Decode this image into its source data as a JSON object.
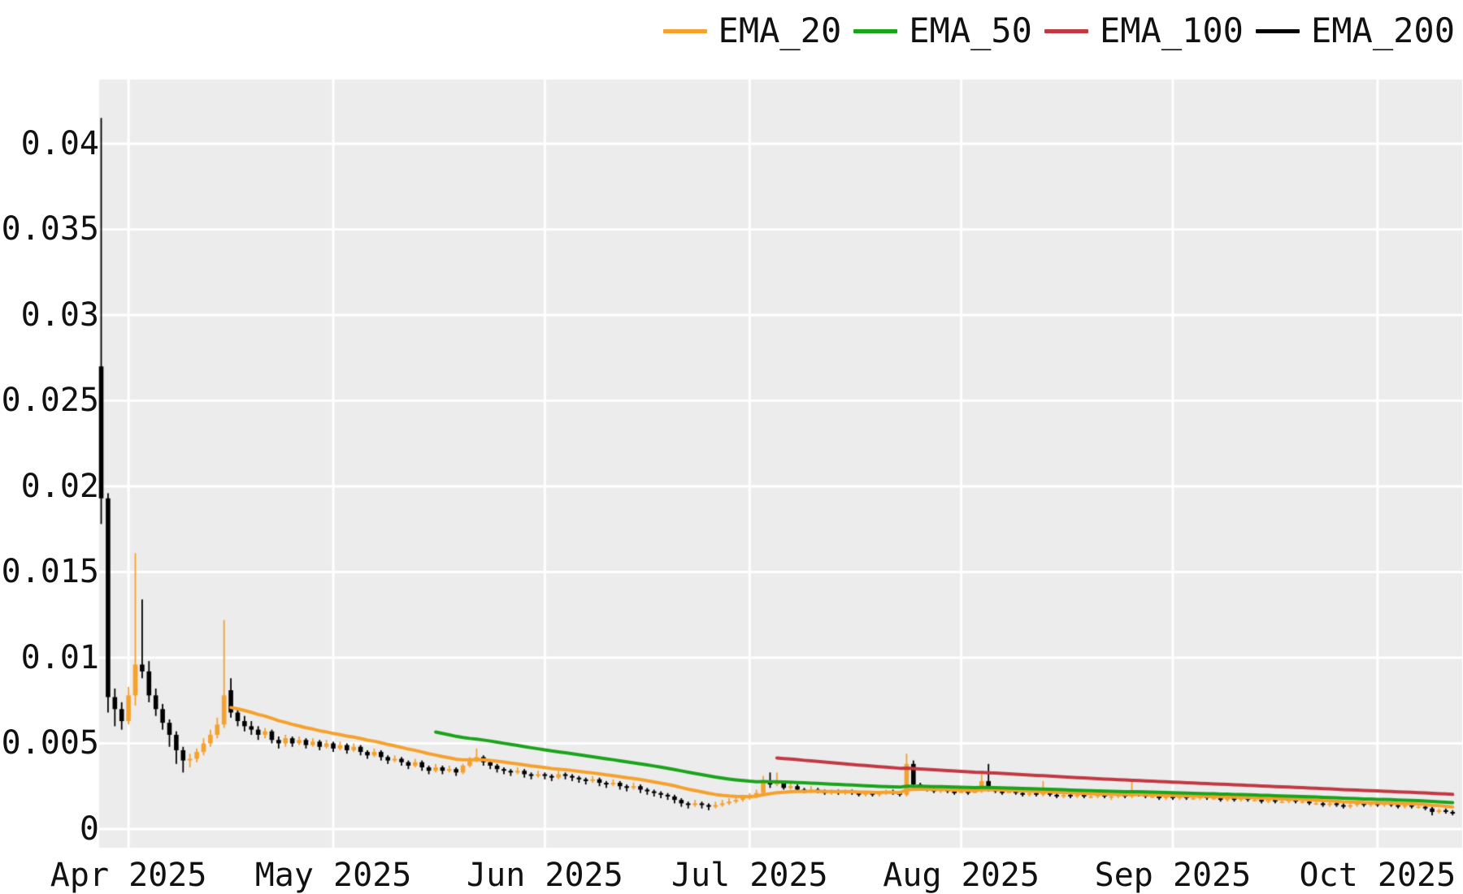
{
  "figure": {
    "background": "#ffffff",
    "plot_background": "#ececec",
    "grid_color": "#ffffff",
    "text_color": "#111111",
    "candle_up_color": "#f6a12d",
    "candle_down_color": "#000000"
  },
  "legend": {
    "items": [
      {
        "label": "EMA_20",
        "color": "#f6a12d"
      },
      {
        "label": "EMA_50",
        "color": "#1aa41a"
      },
      {
        "label": "EMA_100",
        "color": "#c23944"
      },
      {
        "label": "EMA_200",
        "color": "#000000"
      }
    ]
  },
  "chart_data": {
    "type": "candlestick",
    "title": "",
    "xlabel": "",
    "ylabel": "",
    "interval": "1d",
    "start_date": "2025-03-28",
    "end_date": "2025-10-12",
    "x_axis": {
      "tick_labels": [
        "Apr 2025",
        "May 2025",
        "Jun 2025",
        "Jul 2025",
        "Aug 2025",
        "Sep 2025",
        "Oct 2025"
      ],
      "tick_day_offsets": [
        0,
        30,
        61,
        91,
        122,
        153,
        183
      ],
      "xlim_day_offsets": [
        -4.3,
        195.4
      ]
    },
    "y_axis": {
      "tick_labels": [
        "0",
        "0.005",
        "0.01",
        "0.015",
        "0.02",
        "0.025",
        "0.03",
        "0.035",
        "0.04"
      ],
      "tick_values": [
        0,
        0.005,
        0.01,
        0.015,
        0.02,
        0.025,
        0.03,
        0.035,
        0.04
      ],
      "ylim": [
        -0.00109,
        0.04374
      ]
    },
    "overlays": [
      {
        "name": "EMA_20",
        "type": "ema",
        "span": 20,
        "color": "#f6a12d"
      },
      {
        "name": "EMA_50",
        "type": "ema",
        "span": 50,
        "color": "#1aa41a"
      },
      {
        "name": "EMA_100",
        "type": "ema",
        "span": 100,
        "color": "#c23944"
      },
      {
        "name": "EMA_200",
        "type": "ema",
        "span": 200,
        "color": "#000000"
      }
    ],
    "ohlc": [
      [
        0.027,
        0.0415,
        0.0178,
        0.0193
      ],
      [
        0.0193,
        0.0196,
        0.0068,
        0.0077
      ],
      [
        0.0077,
        0.0082,
        0.006,
        0.007
      ],
      [
        0.007,
        0.0074,
        0.0058,
        0.0063
      ],
      [
        0.0063,
        0.0083,
        0.0061,
        0.0078
      ],
      [
        0.0078,
        0.0161,
        0.0072,
        0.0096
      ],
      [
        0.0096,
        0.0134,
        0.0088,
        0.0092
      ],
      [
        0.0092,
        0.0098,
        0.0074,
        0.0078
      ],
      [
        0.0078,
        0.0082,
        0.0066,
        0.007
      ],
      [
        0.007,
        0.0073,
        0.0058,
        0.0062
      ],
      [
        0.0062,
        0.0064,
        0.0048,
        0.0055
      ],
      [
        0.0055,
        0.0057,
        0.0038,
        0.0046
      ],
      [
        0.0046,
        0.0048,
        0.0033,
        0.004
      ],
      [
        0.004,
        0.0044,
        0.0036,
        0.0041
      ],
      [
        0.0041,
        0.0047,
        0.0039,
        0.0045
      ],
      [
        0.0045,
        0.0053,
        0.0043,
        0.005
      ],
      [
        0.005,
        0.0058,
        0.0048,
        0.0055
      ],
      [
        0.0055,
        0.0065,
        0.0053,
        0.0061
      ],
      [
        0.0061,
        0.0122,
        0.0059,
        0.0078
      ],
      [
        0.0081,
        0.0088,
        0.0065,
        0.0068
      ],
      [
        0.0068,
        0.007,
        0.006,
        0.0063
      ],
      [
        0.0063,
        0.0066,
        0.0057,
        0.006
      ],
      [
        0.006,
        0.0063,
        0.0055,
        0.0058
      ],
      [
        0.0058,
        0.006,
        0.0052,
        0.0055
      ],
      [
        0.0055,
        0.0059,
        0.0053,
        0.0057
      ],
      [
        0.0057,
        0.0058,
        0.005,
        0.0052
      ],
      [
        0.0052,
        0.0054,
        0.0047,
        0.005
      ],
      [
        0.005,
        0.0055,
        0.0048,
        0.0053
      ],
      [
        0.0053,
        0.0054,
        0.0048,
        0.005
      ],
      [
        0.005,
        0.0054,
        0.0049,
        0.0052
      ],
      [
        0.0052,
        0.0053,
        0.0047,
        0.0049
      ],
      [
        0.0049,
        0.0053,
        0.0048,
        0.0051
      ],
      [
        0.0051,
        0.0052,
        0.0046,
        0.0048
      ],
      [
        0.0048,
        0.0052,
        0.0047,
        0.005
      ],
      [
        0.005,
        0.0051,
        0.0045,
        0.0047
      ],
      [
        0.0047,
        0.0051,
        0.0046,
        0.0049
      ],
      [
        0.0049,
        0.005,
        0.0044,
        0.0046
      ],
      [
        0.0046,
        0.005,
        0.0045,
        0.0048
      ],
      [
        0.0048,
        0.0049,
        0.0043,
        0.0045
      ],
      [
        0.0045,
        0.0046,
        0.0041,
        0.0043
      ],
      [
        0.0043,
        0.0047,
        0.0042,
        0.0045
      ],
      [
        0.0045,
        0.0046,
        0.004,
        0.0042
      ],
      [
        0.0042,
        0.0043,
        0.0038,
        0.004
      ],
      [
        0.004,
        0.0043,
        0.0039,
        0.0041
      ],
      [
        0.0041,
        0.0042,
        0.0037,
        0.0039
      ],
      [
        0.0039,
        0.004,
        0.0035,
        0.0037
      ],
      [
        0.0037,
        0.0041,
        0.0036,
        0.0039
      ],
      [
        0.0039,
        0.004,
        0.0034,
        0.0036
      ],
      [
        0.0036,
        0.0037,
        0.0032,
        0.0034
      ],
      [
        0.0034,
        0.0038,
        0.0033,
        0.0036
      ],
      [
        0.0036,
        0.0037,
        0.0032,
        0.0034
      ],
      [
        0.0034,
        0.0037,
        0.0033,
        0.0035
      ],
      [
        0.0035,
        0.0036,
        0.0031,
        0.0033
      ],
      [
        0.0033,
        0.0038,
        0.0032,
        0.0037
      ],
      [
        0.0037,
        0.0042,
        0.0036,
        0.004
      ],
      [
        0.004,
        0.0047,
        0.0039,
        0.0042
      ],
      [
        0.0042,
        0.0043,
        0.0037,
        0.0039
      ],
      [
        0.0039,
        0.004,
        0.0035,
        0.0037
      ],
      [
        0.0037,
        0.0038,
        0.0033,
        0.0035
      ],
      [
        0.0035,
        0.0036,
        0.0032,
        0.0034
      ],
      [
        0.0034,
        0.0035,
        0.0031,
        0.0033
      ],
      [
        0.0033,
        0.0036,
        0.0032,
        0.0034
      ],
      [
        0.0034,
        0.0035,
        0.003,
        0.0032
      ],
      [
        0.0032,
        0.0033,
        0.0029,
        0.0031
      ],
      [
        0.0031,
        0.0034,
        0.003,
        0.0032
      ],
      [
        0.0032,
        0.0033,
        0.0029,
        0.0031
      ],
      [
        0.0031,
        0.0032,
        0.0028,
        0.003
      ],
      [
        0.003,
        0.0034,
        0.0029,
        0.0032
      ],
      [
        0.0032,
        0.0033,
        0.0029,
        0.0031
      ],
      [
        0.0031,
        0.0032,
        0.0028,
        0.003
      ],
      [
        0.003,
        0.0031,
        0.0027,
        0.0029
      ],
      [
        0.0029,
        0.003,
        0.0026,
        0.0028
      ],
      [
        0.0028,
        0.0031,
        0.0027,
        0.0029
      ],
      [
        0.0029,
        0.003,
        0.0025,
        0.0027
      ],
      [
        0.0027,
        0.0028,
        0.0024,
        0.0026
      ],
      [
        0.0026,
        0.0029,
        0.0025,
        0.0027
      ],
      [
        0.0027,
        0.0028,
        0.0023,
        0.0025
      ],
      [
        0.0025,
        0.0026,
        0.0022,
        0.0024
      ],
      [
        0.0024,
        0.0027,
        0.0023,
        0.0025
      ],
      [
        0.0025,
        0.0026,
        0.0021,
        0.0023
      ],
      [
        0.0023,
        0.0024,
        0.002,
        0.0022
      ],
      [
        0.0022,
        0.0023,
        0.0019,
        0.0021
      ],
      [
        0.0021,
        0.0022,
        0.0018,
        0.002
      ],
      [
        0.002,
        0.0021,
        0.0017,
        0.0019
      ],
      [
        0.0019,
        0.002,
        0.0015,
        0.0017
      ],
      [
        0.0017,
        0.0018,
        0.0013,
        0.0015
      ],
      [
        0.0015,
        0.0016,
        0.0012,
        0.0014
      ],
      [
        0.0014,
        0.0017,
        0.0013,
        0.0015
      ],
      [
        0.0015,
        0.0016,
        0.0012,
        0.0014
      ],
      [
        0.0014,
        0.0015,
        0.0011,
        0.0013
      ],
      [
        0.0013,
        0.0016,
        0.0012,
        0.0014
      ],
      [
        0.0014,
        0.0017,
        0.0013,
        0.0015
      ],
      [
        0.0015,
        0.0018,
        0.0014,
        0.0016
      ],
      [
        0.0016,
        0.0019,
        0.0015,
        0.0017
      ],
      [
        0.0017,
        0.002,
        0.0016,
        0.0018
      ],
      [
        0.0018,
        0.0021,
        0.0017,
        0.0019
      ],
      [
        0.0019,
        0.0023,
        0.0018,
        0.0021
      ],
      [
        0.0021,
        0.0031,
        0.002,
        0.0028
      ],
      [
        0.0028,
        0.0033,
        0.0024,
        0.0026
      ],
      [
        0.0026,
        0.0033,
        0.0025,
        0.0027
      ],
      [
        0.0027,
        0.0028,
        0.0023,
        0.0024
      ],
      [
        0.0024,
        0.0027,
        0.0023,
        0.0025
      ],
      [
        0.0025,
        0.0026,
        0.0022,
        0.0023
      ],
      [
        0.0023,
        0.0024,
        0.0021,
        0.0022
      ],
      [
        0.0022,
        0.0025,
        0.0021,
        0.0023
      ],
      [
        0.0023,
        0.0024,
        0.0021,
        0.0022
      ],
      [
        0.0022,
        0.0023,
        0.002,
        0.0021
      ],
      [
        0.0021,
        0.0023,
        0.002,
        0.0022
      ],
      [
        0.0022,
        0.0023,
        0.002,
        0.0021
      ],
      [
        0.0021,
        0.0023,
        0.002,
        0.0022
      ],
      [
        0.0022,
        0.0023,
        0.002,
        0.0021
      ],
      [
        0.0021,
        0.0022,
        0.0019,
        0.002
      ],
      [
        0.002,
        0.0022,
        0.0019,
        0.0021
      ],
      [
        0.0021,
        0.0022,
        0.0019,
        0.002
      ],
      [
        0.002,
        0.0022,
        0.0019,
        0.0021
      ],
      [
        0.0021,
        0.0023,
        0.002,
        0.0022
      ],
      [
        0.0022,
        0.0023,
        0.002,
        0.0021
      ],
      [
        0.0021,
        0.0022,
        0.0019,
        0.002
      ],
      [
        0.002,
        0.0044,
        0.0019,
        0.0038
      ],
      [
        0.0038,
        0.004,
        0.0024,
        0.0026
      ],
      [
        0.0026,
        0.0027,
        0.0023,
        0.0024
      ],
      [
        0.0024,
        0.0025,
        0.0022,
        0.0023
      ],
      [
        0.0023,
        0.0024,
        0.0021,
        0.0022
      ],
      [
        0.0022,
        0.0025,
        0.0021,
        0.0023
      ],
      [
        0.0023,
        0.0024,
        0.0021,
        0.0022
      ],
      [
        0.0022,
        0.0023,
        0.002,
        0.0021
      ],
      [
        0.0021,
        0.0024,
        0.0021,
        0.0022
      ],
      [
        0.0022,
        0.0023,
        0.002,
        0.0021
      ],
      [
        0.0021,
        0.0024,
        0.0021,
        0.0022
      ],
      [
        0.0022,
        0.0034,
        0.0021,
        0.0028
      ],
      [
        0.0028,
        0.0038,
        0.0022,
        0.0023
      ],
      [
        0.0023,
        0.0025,
        0.0021,
        0.0022
      ],
      [
        0.0022,
        0.0023,
        0.002,
        0.0021
      ],
      [
        0.0021,
        0.0024,
        0.0021,
        0.0022
      ],
      [
        0.0022,
        0.0023,
        0.002,
        0.0021
      ],
      [
        0.0021,
        0.0022,
        0.0019,
        0.002
      ],
      [
        0.002,
        0.0022,
        0.0019,
        0.0021
      ],
      [
        0.0021,
        0.0022,
        0.0019,
        0.002
      ],
      [
        0.002,
        0.0028,
        0.0019,
        0.0021
      ],
      [
        0.0021,
        0.0022,
        0.0019,
        0.002
      ],
      [
        0.002,
        0.0021,
        0.0018,
        0.0019
      ],
      [
        0.0019,
        0.0021,
        0.0018,
        0.002
      ],
      [
        0.002,
        0.0021,
        0.0018,
        0.0019
      ],
      [
        0.0019,
        0.0021,
        0.0018,
        0.002
      ],
      [
        0.002,
        0.0021,
        0.0018,
        0.0019
      ],
      [
        0.0019,
        0.002,
        0.0018,
        0.0019
      ],
      [
        0.0019,
        0.0021,
        0.0018,
        0.002
      ],
      [
        0.002,
        0.0021,
        0.0018,
        0.0019
      ],
      [
        0.0019,
        0.002,
        0.0017,
        0.0019
      ],
      [
        0.0019,
        0.0021,
        0.0018,
        0.002
      ],
      [
        0.002,
        0.0021,
        0.0018,
        0.0019
      ],
      [
        0.0019,
        0.0028,
        0.0018,
        0.0021
      ],
      [
        0.0021,
        0.0022,
        0.0019,
        0.002
      ],
      [
        0.002,
        0.0021,
        0.0018,
        0.0019
      ],
      [
        0.0019,
        0.002,
        0.0018,
        0.0019
      ],
      [
        0.0019,
        0.002,
        0.0017,
        0.0018
      ],
      [
        0.0018,
        0.002,
        0.0017,
        0.0019
      ],
      [
        0.0019,
        0.002,
        0.0017,
        0.0018
      ],
      [
        0.0018,
        0.002,
        0.0017,
        0.0019
      ],
      [
        0.0019,
        0.002,
        0.0017,
        0.0018
      ],
      [
        0.0018,
        0.0019,
        0.0017,
        0.0018
      ],
      [
        0.0018,
        0.002,
        0.0017,
        0.0019
      ],
      [
        0.0019,
        0.002,
        0.0017,
        0.0018
      ],
      [
        0.0018,
        0.0019,
        0.0017,
        0.0018
      ],
      [
        0.0018,
        0.0019,
        0.0016,
        0.0017
      ],
      [
        0.0017,
        0.0019,
        0.0016,
        0.0018
      ],
      [
        0.0018,
        0.0019,
        0.0016,
        0.0017
      ],
      [
        0.0017,
        0.0019,
        0.0016,
        0.0018
      ],
      [
        0.0018,
        0.0019,
        0.0016,
        0.0017
      ],
      [
        0.0017,
        0.0018,
        0.0016,
        0.0017
      ],
      [
        0.0017,
        0.0018,
        0.0015,
        0.0016
      ],
      [
        0.0016,
        0.0018,
        0.0015,
        0.0017
      ],
      [
        0.0017,
        0.0018,
        0.0015,
        0.0016
      ],
      [
        0.0016,
        0.0017,
        0.0015,
        0.0016
      ],
      [
        0.0016,
        0.0018,
        0.0015,
        0.0017
      ],
      [
        0.0017,
        0.0018,
        0.0015,
        0.0016
      ],
      [
        0.0016,
        0.0017,
        0.0015,
        0.0016
      ],
      [
        0.0016,
        0.0017,
        0.0014,
        0.0015
      ],
      [
        0.0015,
        0.0016,
        0.0014,
        0.0015
      ],
      [
        0.0015,
        0.0016,
        0.0013,
        0.0014
      ],
      [
        0.0014,
        0.0016,
        0.0013,
        0.0015
      ],
      [
        0.0015,
        0.0016,
        0.0013,
        0.0014
      ],
      [
        0.0014,
        0.0015,
        0.0012,
        0.0013
      ],
      [
        0.0013,
        0.0015,
        0.0012,
        0.0014
      ],
      [
        0.0014,
        0.0016,
        0.0013,
        0.0015
      ],
      [
        0.0015,
        0.0016,
        0.0013,
        0.0014
      ],
      [
        0.0014,
        0.0016,
        0.0013,
        0.0015
      ],
      [
        0.0015,
        0.0016,
        0.0013,
        0.0014
      ],
      [
        0.0014,
        0.0016,
        0.0013,
        0.0015
      ],
      [
        0.0015,
        0.0016,
        0.0013,
        0.0014
      ],
      [
        0.0014,
        0.0015,
        0.0012,
        0.0013
      ],
      [
        0.0013,
        0.0015,
        0.0012,
        0.0014
      ],
      [
        0.0014,
        0.0015,
        0.0012,
        0.0013
      ],
      [
        0.0013,
        0.0014,
        0.0012,
        0.0013
      ],
      [
        0.0013,
        0.0014,
        0.0011,
        0.0012
      ],
      [
        0.0012,
        0.0013,
        0.0008,
        0.001
      ],
      [
        0.001,
        0.0012,
        0.0009,
        0.0011
      ],
      [
        0.0011,
        0.0012,
        0.0009,
        0.001
      ],
      [
        0.001,
        0.0011,
        0.0008,
        0.0009
      ]
    ]
  }
}
